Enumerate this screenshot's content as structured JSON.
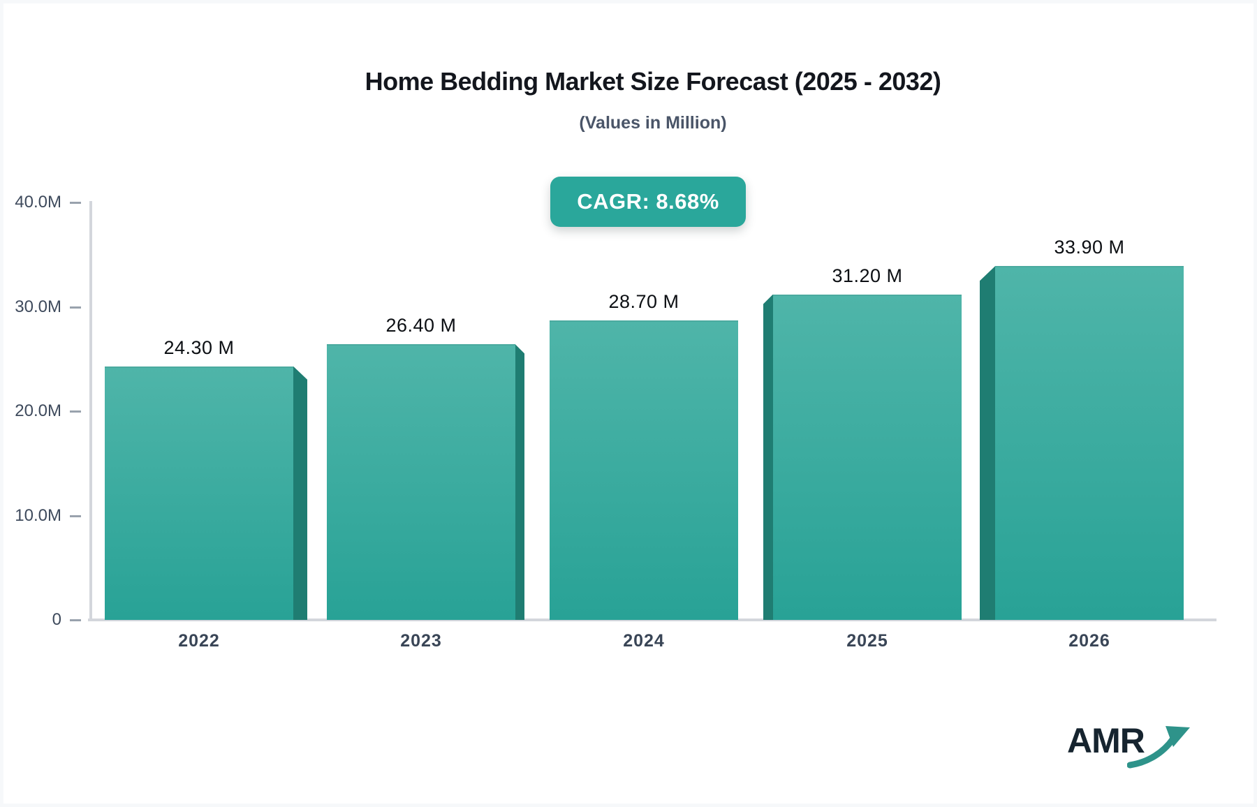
{
  "header": {
    "title": "Home Bedding Market Size Forecast (2025 - 2032)",
    "subtitle": "(Values in Million)",
    "cagr_badge": "CAGR: 8.68%"
  },
  "logo": {
    "text": "AMR",
    "arrow_icon": "trending-up-arrow"
  },
  "colors": {
    "badge_bg": "#2aa79b",
    "bar_face_top": "#4fb5a9",
    "bar_face_bottom": "#28a296",
    "bar_side": "#1f7d72",
    "axis_line": "#d3d6dc",
    "logo_arrow": "#2e938a"
  },
  "chart_data": {
    "type": "bar",
    "title": "Home Bedding Market Size Forecast (2025 - 2032)",
    "subtitle": "(Values in Million)",
    "categories": [
      "2022",
      "2023",
      "2024",
      "2025",
      "2026"
    ],
    "values": [
      24.3,
      26.4,
      28.7,
      31.2,
      33.9
    ],
    "value_labels": [
      "24.30 M",
      "26.40 M",
      "28.70 M",
      "31.20 M",
      "33.90 M"
    ],
    "xlabel": "",
    "ylabel": "",
    "ylim": [
      0,
      40
    ],
    "y_ticks": [
      {
        "value": 40,
        "label": "40.0M"
      },
      {
        "value": 30,
        "label": "30.0M"
      },
      {
        "value": 20,
        "label": "20.0M"
      },
      {
        "value": 10,
        "label": "10.0M"
      },
      {
        "value": 0,
        "label": "0"
      }
    ],
    "grid": false,
    "legend": false,
    "cagr_annotation": "CAGR: 8.68%"
  }
}
